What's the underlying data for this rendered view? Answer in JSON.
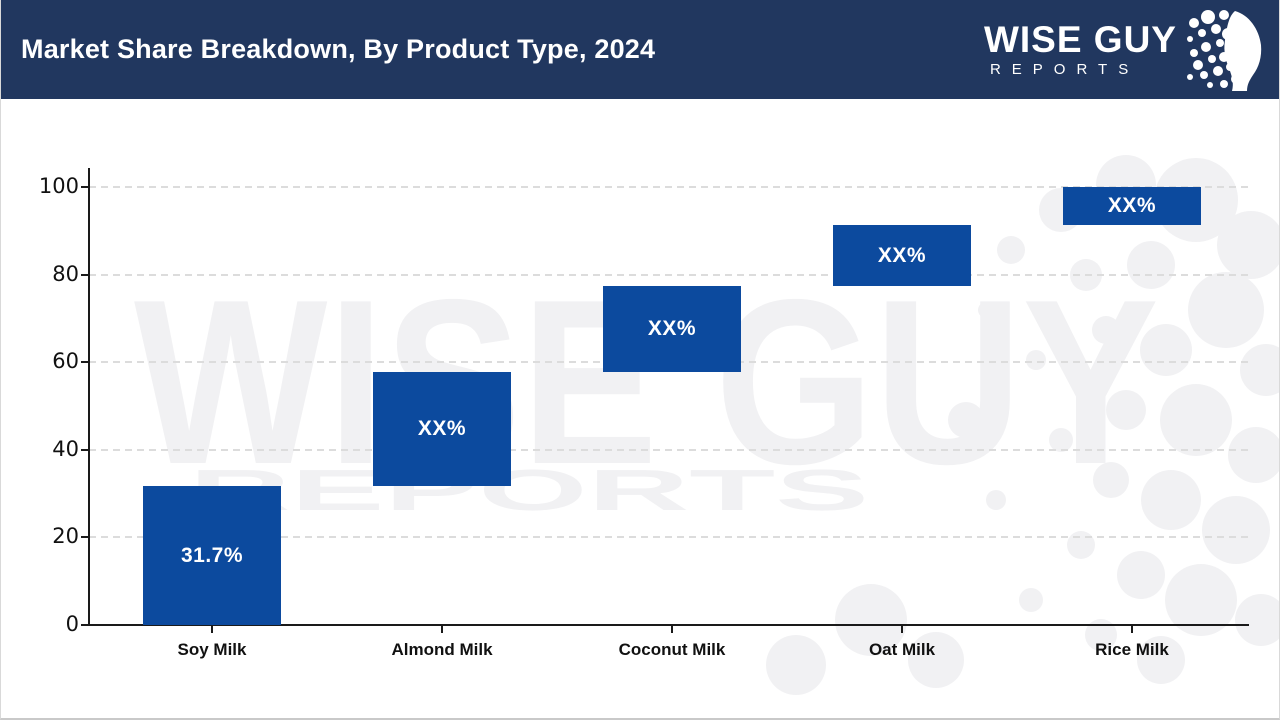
{
  "header": {
    "title": "Market Share Breakdown, By Product Type, 2024",
    "logo": {
      "line1": "WISE GUY",
      "line2": "REPORTS"
    }
  },
  "watermark": {
    "line1": "WISE GUY",
    "line2": "REPORTS"
  },
  "chart_data": {
    "type": "bar",
    "subtype": "waterfall",
    "title": "Market Share Breakdown, By Product Type, 2024",
    "categories": [
      "Soy Milk",
      "Almond Milk",
      "Coconut Milk",
      "Oat Milk",
      "Rice Milk"
    ],
    "segments": [
      {
        "category": "Soy Milk",
        "start": 0,
        "end": 31.7,
        "label": "31.7%"
      },
      {
        "category": "Almond Milk",
        "start": 31.7,
        "end": 57.7,
        "label": "XX%"
      },
      {
        "category": "Coconut Milk",
        "start": 57.7,
        "end": 77.3,
        "label": "XX%"
      },
      {
        "category": "Oat Milk",
        "start": 77.3,
        "end": 91.3,
        "label": "XX%"
      },
      {
        "category": "Rice Milk",
        "start": 91.3,
        "end": 100,
        "label": "XX%"
      }
    ],
    "xlabel": "",
    "ylabel": "",
    "ylim": [
      0,
      100
    ],
    "yticks": [
      0,
      20,
      40,
      60,
      80,
      100
    ],
    "grid": "horizontal-dashed",
    "legend": "none",
    "bar_color": "#0c4a9e",
    "bar_label_color": "#ffffff"
  },
  "colors": {
    "header_bg": "#21375f",
    "header_text": "#ffffff",
    "bar": "#0c4a9e",
    "gridline": "#dcdcdc",
    "axis": "#1a1a1a",
    "watermark": "#f1f1f3",
    "background": "#ffffff"
  }
}
